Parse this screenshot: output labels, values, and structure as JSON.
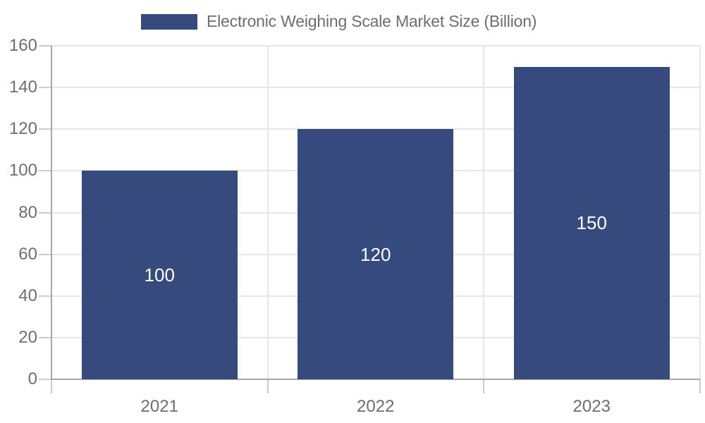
{
  "chart_data": {
    "type": "bar",
    "title": "Electronic Weighing Scale Market Size (Billion)",
    "legend_position": "top",
    "categories": [
      "2021",
      "2022",
      "2023"
    ],
    "series": [
      {
        "name": "Electronic Weighing Scale Market Size (Billion)",
        "values": [
          100,
          120,
          150
        ]
      }
    ],
    "bar_value_labels": [
      "100",
      "120",
      "150"
    ],
    "xlabel": "",
    "ylabel": "",
    "ylim": [
      0,
      160
    ],
    "yticks": [
      0,
      20,
      40,
      60,
      80,
      100,
      120,
      140,
      160
    ],
    "grid": true,
    "colors": {
      "bar": "#364a7e",
      "bar_value_label": "#ffffff",
      "text": "#6e6e6e",
      "axis": "#a6a6a6",
      "tick": "#cccccc",
      "grid": "#e6e6e6"
    }
  }
}
